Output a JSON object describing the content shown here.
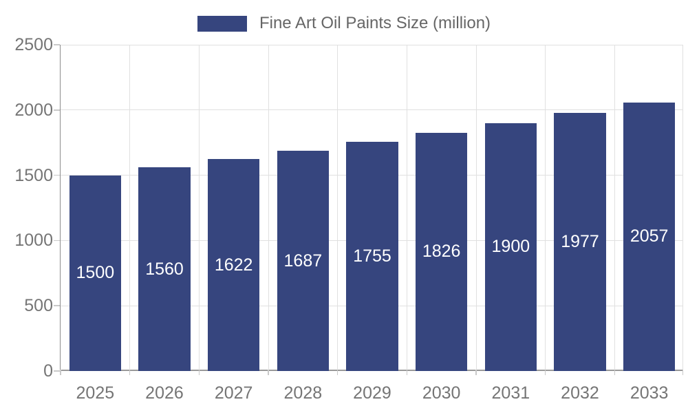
{
  "chart_data": {
    "type": "bar",
    "title": "Fine Art Oil Paints Size (million)",
    "categories": [
      "2025",
      "2026",
      "2027",
      "2028",
      "2029",
      "2030",
      "2031",
      "2032",
      "2033"
    ],
    "values": [
      1500,
      1560,
      1622,
      1687,
      1755,
      1826,
      1900,
      1977,
      2057
    ],
    "series": [
      {
        "name": "Fine Art Oil Paints Size (million)",
        "values": [
          1500,
          1560,
          1622,
          1687,
          1755,
          1826,
          1900,
          1977,
          2057
        ]
      }
    ],
    "xlabel": "",
    "ylabel": "",
    "ylim": [
      0,
      2500
    ],
    "yticks": [
      0,
      500,
      1000,
      1500,
      2000,
      2500
    ],
    "grid": true,
    "legend_position": "top-center",
    "bar_label_position": "inside-center"
  },
  "colors": {
    "bar": "#36457E",
    "bar_label": "#ffffff",
    "grid": "#e0e0e0",
    "y_axis_line": "#8c8c8c",
    "x_axis_line": "#999999",
    "tick_mark": "#c9c9c9",
    "tick_label": "#757575",
    "legend_text": "#666666",
    "background": "#ffffff"
  }
}
